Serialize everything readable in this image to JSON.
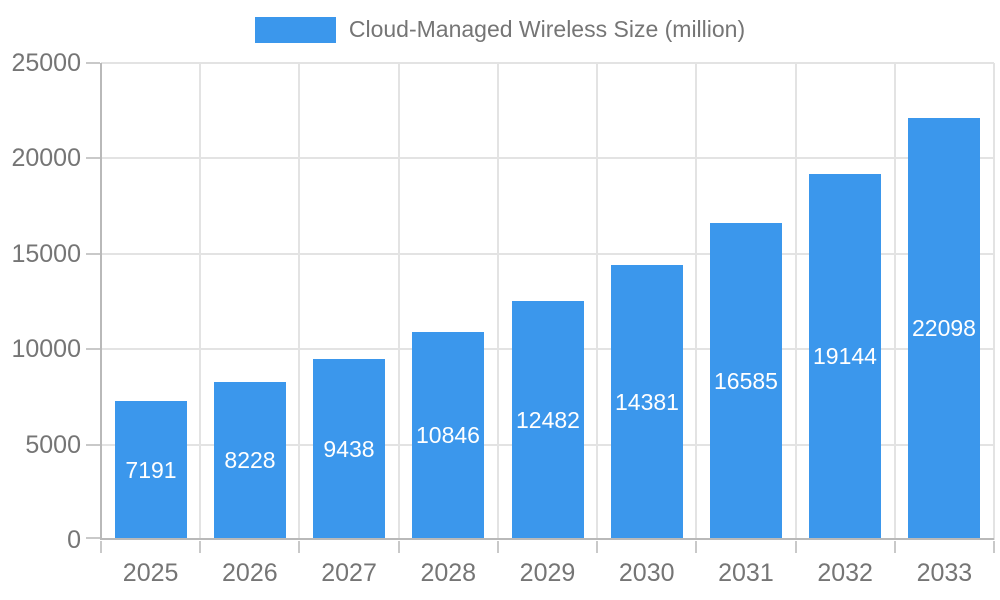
{
  "chart_data": {
    "type": "bar",
    "title": "Cloud-Managed Wireless Size (million)",
    "categories": [
      "2025",
      "2026",
      "2027",
      "2028",
      "2029",
      "2030",
      "2031",
      "2032",
      "2033"
    ],
    "values": [
      7191,
      8228,
      9438,
      10846,
      12482,
      14381,
      16585,
      19144,
      22098
    ],
    "series": [
      {
        "name": "Cloud-Managed Wireless Size (million)",
        "values": [
          7191,
          8228,
          9438,
          10846,
          12482,
          14381,
          16585,
          19144,
          22098
        ]
      }
    ],
    "xlabel": "",
    "ylabel": "",
    "ylim": [
      0,
      25000
    ],
    "y_ticks": [
      0,
      5000,
      10000,
      15000,
      20000,
      25000
    ],
    "grid": true,
    "legend_position": "top-center",
    "value_labels": "inside-center",
    "colors": {
      "bar": "#3B97EC",
      "value_label": "#ffffff",
      "axis_text": "#757575",
      "legend_text": "#757575",
      "gridline": "#e3e3e3",
      "axis_line": "#b9b9b9",
      "tick": "#c9c9c9",
      "background": "#ffffff"
    }
  },
  "legend": {
    "label": "Cloud-Managed Wireless Size (million)"
  }
}
